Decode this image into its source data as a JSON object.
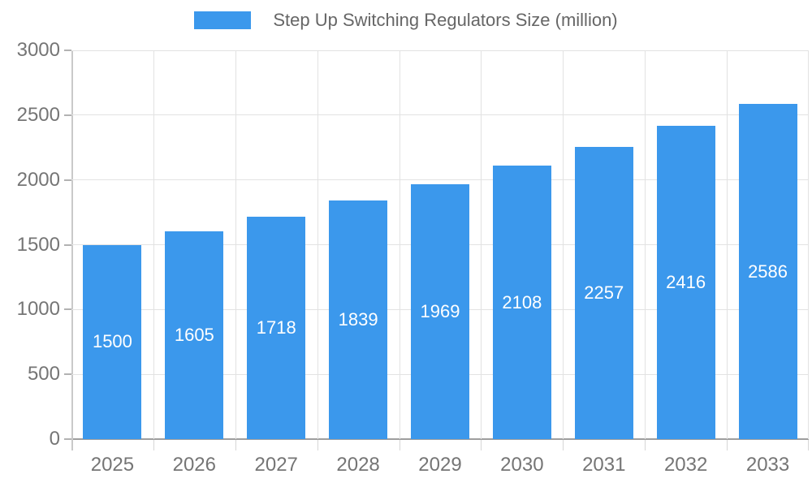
{
  "chart_data": {
    "type": "bar",
    "title": "Step Up Switching Regulators Size (million)",
    "categories": [
      "2025",
      "2026",
      "2027",
      "2028",
      "2029",
      "2030",
      "2031",
      "2032",
      "2033"
    ],
    "series": [
      {
        "name": "Step Up Switching Regulators Size (million)",
        "values": [
          1500,
          1605,
          1718,
          1839,
          1969,
          2108,
          2257,
          2416,
          2586
        ]
      }
    ],
    "values": [
      1500,
      1605,
      1718,
      1839,
      1969,
      2108,
      2257,
      2416,
      2586
    ],
    "xlabel": "",
    "ylabel": "",
    "ylim": [
      0,
      3000
    ],
    "yticks": [
      0,
      500,
      1000,
      1500,
      2000,
      2500,
      3000
    ],
    "grid": true,
    "legend_position": "top",
    "bar_color": "#3B98EC",
    "value_label_color": "#FFFFFF",
    "axis_label_color": "#757575"
  }
}
